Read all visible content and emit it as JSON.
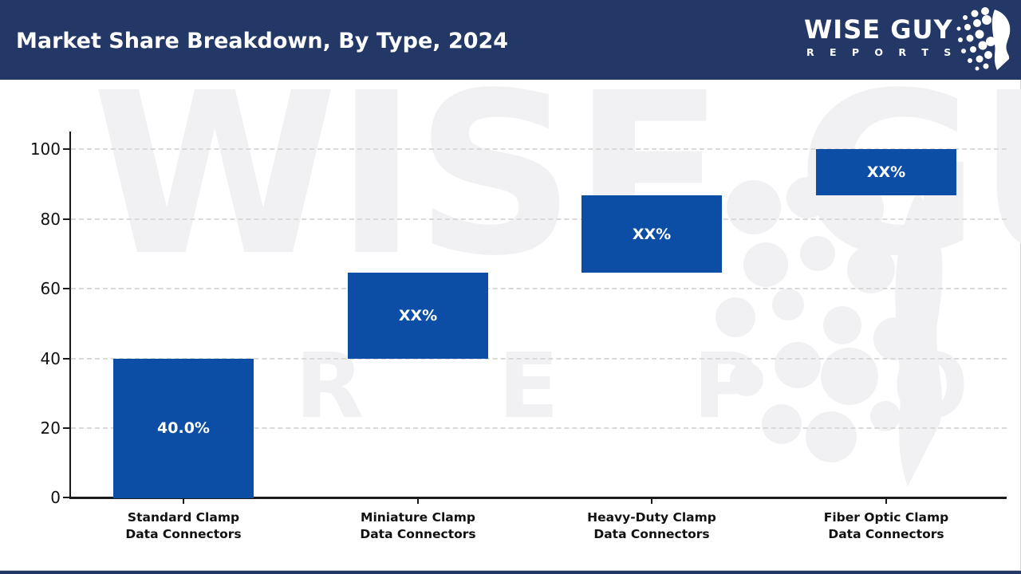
{
  "header": {
    "title": "Market Share Breakdown, By Type, 2024",
    "logo": {
      "line1": "WISE GUY",
      "line2": "R E P O R T S"
    }
  },
  "watermark": {
    "line1": "WISE GUY",
    "line2": "REPORTS"
  },
  "colors": {
    "header_bg": "#233867",
    "bar": "#0c4da6",
    "watermark": "#f1f1f4",
    "axis": "#1a1a1a",
    "gridline": "#d9d9d9",
    "title_text": "#ffffff",
    "label_text": "#111111"
  },
  "chart_data": {
    "type": "bar",
    "subtype": "floating-waterfall",
    "title": "Market Share Breakdown, By Type, 2024",
    "xlabel": "",
    "ylabel": "",
    "ylim": [
      0,
      100
    ],
    "yticks": [
      "0",
      "20",
      "40",
      "60",
      "80",
      "100"
    ],
    "grid": "horizontal-dashed",
    "legend": "none",
    "categories": [
      {
        "line1": "Standard Clamp",
        "line2": "Data Connectors"
      },
      {
        "line1": "Miniature Clamp",
        "line2": "Data Connectors"
      },
      {
        "line1": "Heavy-Duty Clamp",
        "line2": "Data Connectors"
      },
      {
        "line1": "Fiber Optic Clamp",
        "line2": "Data Connectors"
      }
    ],
    "bars": [
      {
        "category": "Standard Clamp Data Connectors",
        "start": 0,
        "end": 40,
        "label": "40.0%"
      },
      {
        "category": "Miniature Clamp Data Connectors",
        "start": 40,
        "end": 64.5,
        "label": "XX%"
      },
      {
        "category": "Heavy-Duty Clamp Data Connectors",
        "start": 64.5,
        "end": 86.8,
        "label": "XX%"
      },
      {
        "category": "Fiber Optic Clamp Data Connectors",
        "start": 86.8,
        "end": 100,
        "label": "XX%"
      }
    ]
  }
}
